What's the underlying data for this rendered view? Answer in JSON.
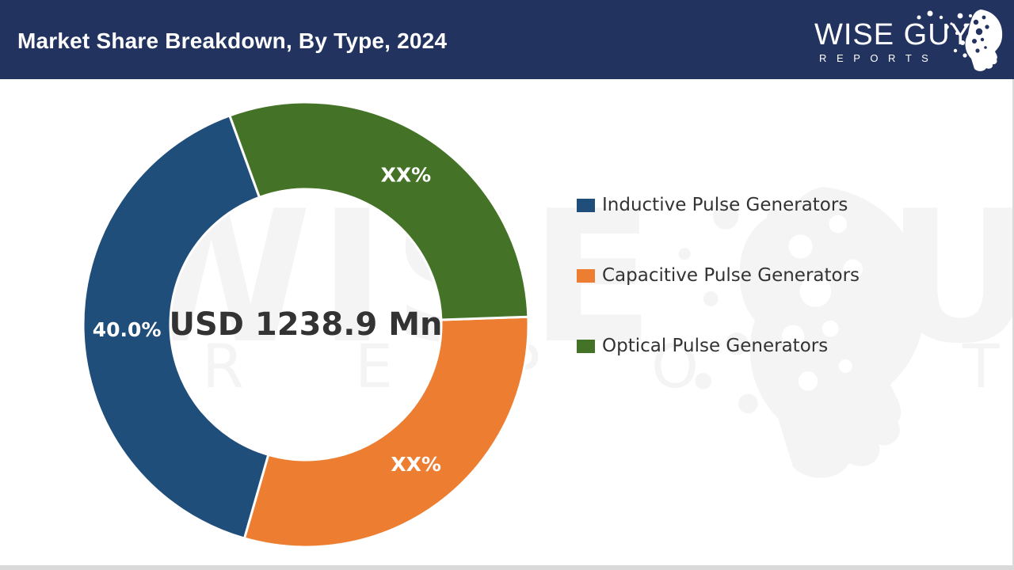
{
  "header": {
    "title": "Market Share Breakdown, By Type, 2024",
    "logo": {
      "line1": "WISE GUY",
      "line2": "R E P O R T S"
    }
  },
  "watermark": {
    "line1": "WISE GUY",
    "line2": "R E P O R T S"
  },
  "chart_data": {
    "type": "pie",
    "variant": "donut",
    "title": "Market Share Breakdown, By Type, 2024",
    "center_label": "USD 1238.9 Mn",
    "start_angle_deg": 110,
    "direction": "counterclockwise",
    "donut_hole_ratio": 0.61,
    "legend_position": "right",
    "segments": [
      {
        "label": "Inductive Pulse Generators",
        "display_value": "40.0%",
        "value_pct": 40,
        "color": "#204E7A"
      },
      {
        "label": "Capacitive Pulse Generators",
        "display_value": "XX%",
        "value_pct": 30,
        "color": "#ED7D31"
      },
      {
        "label": "Optical Pulse Generators",
        "display_value": "XX%",
        "value_pct": 30,
        "color": "#447327"
      }
    ]
  }
}
